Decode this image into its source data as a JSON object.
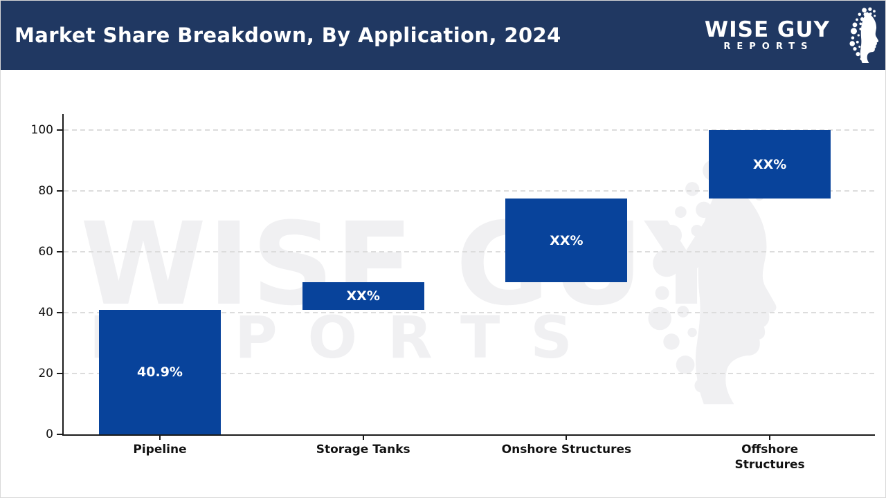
{
  "header": {
    "title": "Market Share Breakdown, By Application, 2024",
    "logo": {
      "primary": "WISE GUY",
      "secondary": "REPORTS"
    }
  },
  "watermark": {
    "primary": "WISE GUY",
    "secondary": "REPORTS"
  },
  "chart_data": {
    "type": "bar",
    "subtype": "waterfall",
    "title": "Market Share Breakdown, By Application, 2024",
    "categories": [
      "Pipeline",
      "Storage Tanks",
      "Onshore Structures",
      "Offshore Structures"
    ],
    "category_lines": [
      [
        "Pipeline"
      ],
      [
        "Storage Tanks"
      ],
      [
        "Onshore Structures"
      ],
      [
        "Offshore",
        "Structures"
      ]
    ],
    "segments": [
      {
        "category": "Pipeline",
        "start": 0,
        "end": 40.9,
        "label": "40.9%"
      },
      {
        "category": "Storage Tanks",
        "start": 40.9,
        "end": 50,
        "label": "XX%"
      },
      {
        "category": "Onshore Structures",
        "start": 50,
        "end": 77.5,
        "label": "XX%"
      },
      {
        "category": "Offshore Structures",
        "start": 77.5,
        "end": 100,
        "label": "XX%"
      }
    ],
    "values_masked_as": "XX%",
    "yticks": [
      0,
      20,
      40,
      60,
      80,
      100
    ],
    "ylim": [
      0,
      100
    ],
    "grid": "horizontal-dashed",
    "legend": "none",
    "xlabel": "",
    "ylabel": ""
  },
  "colors": {
    "header_bg": "#203862",
    "bar": "#08439b",
    "bar_label": "#ffffff",
    "grid": "#dcdcdc",
    "axis": "#1a1a1a",
    "text": "#111111",
    "watermark": "#f0f0f2",
    "border": "#d9d9d9"
  }
}
